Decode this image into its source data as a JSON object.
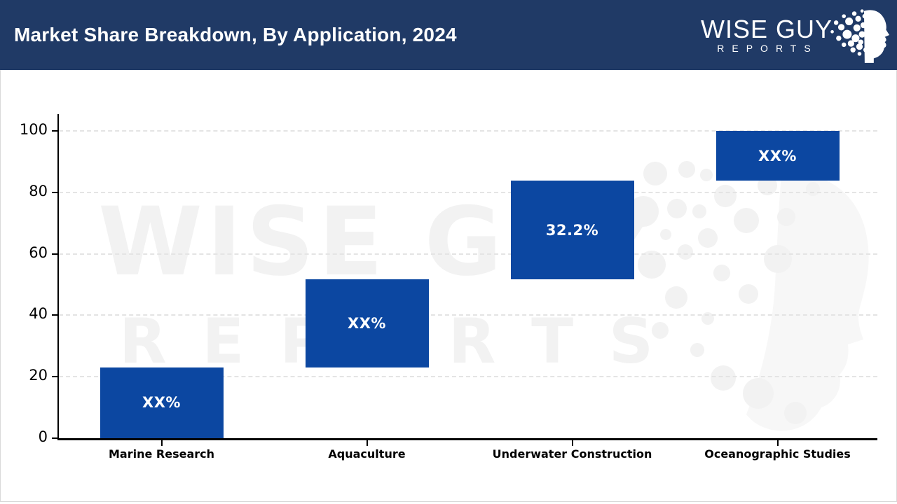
{
  "header": {
    "title": "Market Share Breakdown, By Application, 2024",
    "logo": {
      "wordmark": "WISE GUY",
      "subtext": "REPORTS"
    }
  },
  "watermark": {
    "line1": "WISE GUY",
    "line2": "R E P O R T S"
  },
  "colors": {
    "header_bg": "#203a66",
    "bar_fill": "#0c47a1",
    "bar_label": "#ffffff",
    "grid_line": "#e4e4e4",
    "axis_line": "#000000",
    "tick_text": "#000000",
    "watermark_text": "#f2f2f2",
    "card_border": "#d9d9d9"
  },
  "chart_data": {
    "type": "bar",
    "subtype": "floating-waterfall",
    "title": "Market Share Breakdown, By Application, 2024",
    "categories": [
      "Marine Research",
      "Aquaculture",
      "Underwater Construction",
      "Oceanographic Studies"
    ],
    "series": [
      {
        "name": "Market share (%)",
        "segments": [
          {
            "category": "Marine Research",
            "start": 0,
            "end": 23.1,
            "label": "XX%"
          },
          {
            "category": "Aquaculture",
            "start": 23.1,
            "end": 51.6,
            "label": "XX%"
          },
          {
            "category": "Underwater Construction",
            "start": 51.6,
            "end": 83.8,
            "label": "32.2%"
          },
          {
            "category": "Oceanographic Studies",
            "start": 83.8,
            "end": 100,
            "label": "XX%"
          }
        ]
      }
    ],
    "xlabel": "",
    "ylabel": "",
    "ylim": [
      0,
      100
    ],
    "yticks": [
      0,
      20,
      40,
      60,
      80,
      100
    ],
    "grid": "horizontal-dashed",
    "legend": "none"
  }
}
